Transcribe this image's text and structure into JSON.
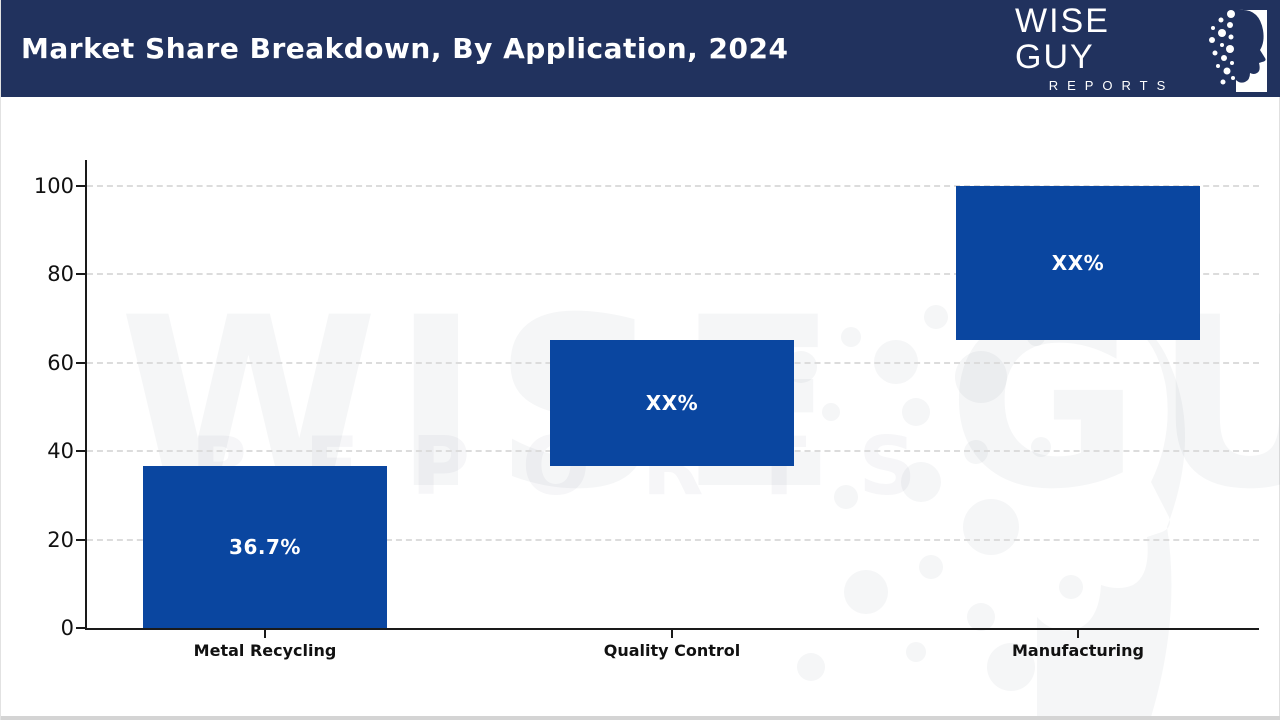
{
  "header": {
    "title": "Market Share Breakdown, By Application, 2024",
    "logo": {
      "line1": "WISE GUY",
      "line2": "REPORTS"
    }
  },
  "watermark": {
    "line1": "WISE GUY",
    "line2": "REPORTS"
  },
  "colors": {
    "header_bg": "#21325e",
    "bar": "#0a46a0",
    "bar_label": "#ffffff",
    "gridline": "#dcdcdc",
    "axis": "#1a1a1a"
  },
  "chart_data": {
    "type": "bar",
    "subtype": "waterfall",
    "title": "Market Share Breakdown, By Application, 2024",
    "xlabel": "",
    "ylabel": "",
    "categories": [
      "Metal Recycling",
      "Quality Control",
      "Manufacturing"
    ],
    "series": [
      {
        "name": "Market Share (%)",
        "segments": [
          {
            "category": "Metal Recycling",
            "start": 0,
            "end": 36.7,
            "label": "36.7%"
          },
          {
            "category": "Quality Control",
            "start": 36.7,
            "end": 65,
            "label": "XX%"
          },
          {
            "category": "Manufacturing",
            "start": 65,
            "end": 100,
            "label": "XX%"
          }
        ]
      }
    ],
    "yticks": [
      0,
      20,
      40,
      60,
      80,
      100
    ],
    "ylim": [
      0,
      105.8
    ],
    "grid": "horizontal-dashed",
    "legend": "none"
  }
}
